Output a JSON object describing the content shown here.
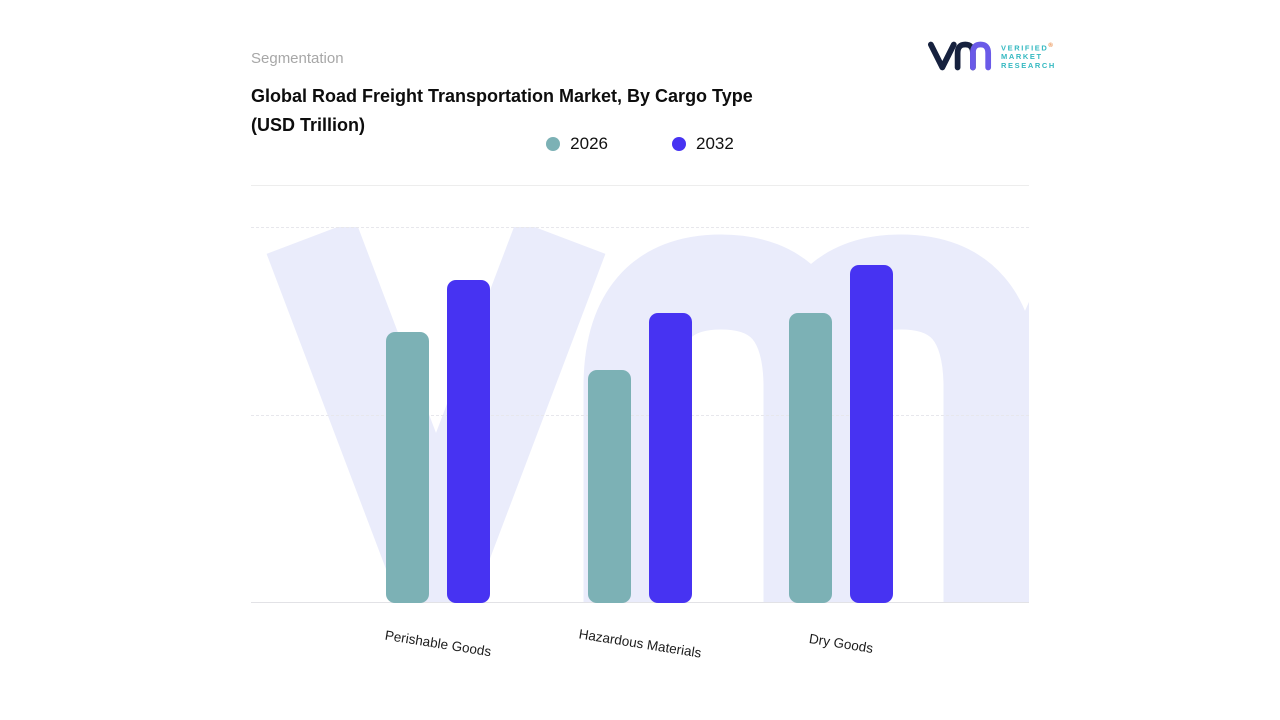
{
  "page": {
    "section_label": "Segmentation",
    "title_lines": [
      "Global Road Freight Transportation Market, By Cargo Type",
      "(USD Trillion)"
    ]
  },
  "logo": {
    "brand_lines": [
      "VERIFIED",
      "MARKET",
      "RESEARCH"
    ],
    "registered_mark": "®",
    "monogram_navy": "#16213e",
    "monogram_purple": "#6a5ae8",
    "text_color": "#35b9c1"
  },
  "legend": [
    {
      "label": "2026",
      "color": "#7cb1b5"
    },
    {
      "label": "2032",
      "color": "#4733f2"
    }
  ],
  "chart_data": {
    "type": "bar",
    "title": "Global Road Freight Transportation Market, By Cargo Type (USD Trillion)",
    "units": "USD Trillion",
    "categories": [
      "Perishable Goods",
      "Hazardous Materials",
      "Dry Goods"
    ],
    "series": [
      {
        "name": "2026",
        "color": "#7cb1b5",
        "values": [
          0.72,
          0.62,
          0.77
        ]
      },
      {
        "name": "2032",
        "color": "#4733f2",
        "values": [
          0.86,
          0.77,
          0.9
        ]
      }
    ],
    "ylim": [
      0,
      1.0
    ],
    "xlabel": "",
    "ylabel": "",
    "value_axis_labels_visible": false,
    "grid": "horizontal-dashed",
    "legend_position": "top-center",
    "watermark_color": "#eaecfb"
  }
}
